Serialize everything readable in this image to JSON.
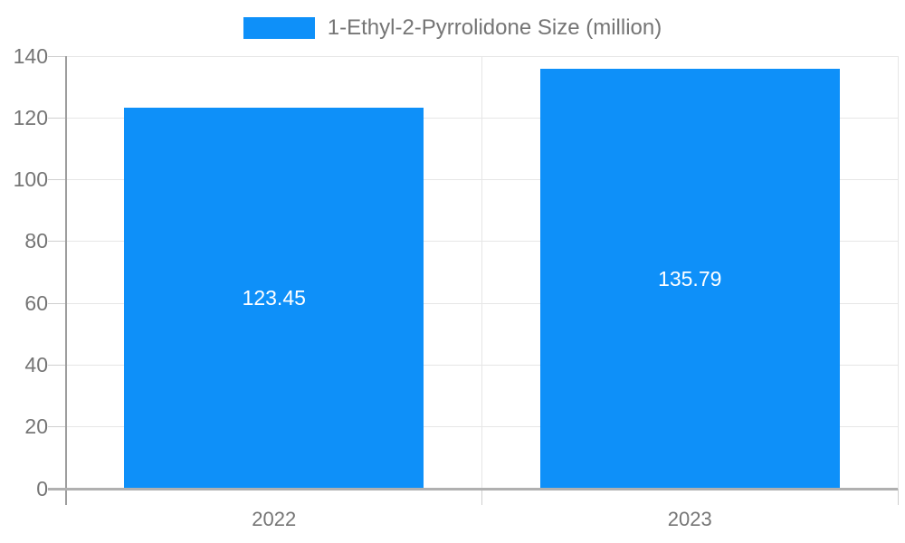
{
  "legend": {
    "label": "1-Ethyl-2-Pyrrolidone Size (million)"
  },
  "colors": {
    "bar": "#0E90F9",
    "grid": "#e6e6e6",
    "tick": "#cfcfcf",
    "axis": "#9e9e9e",
    "baseline": "#b0b0b0",
    "text": "#757575",
    "bar_label": "#ffffff",
    "background": "#ffffff"
  },
  "chart_data": {
    "type": "bar",
    "title": "",
    "xlabel": "",
    "ylabel": "",
    "categories": [
      "2022",
      "2023"
    ],
    "series": [
      {
        "name": "1-Ethyl-2-Pyrrolidone Size (million)",
        "values": [
          123.45,
          135.79
        ]
      }
    ],
    "bar_value_labels": [
      "123.45",
      "135.79"
    ],
    "ylim": [
      0,
      140
    ],
    "yticks": [
      0,
      20,
      40,
      60,
      80,
      100,
      120,
      140
    ],
    "grid": true,
    "legend_position": "top-center"
  }
}
